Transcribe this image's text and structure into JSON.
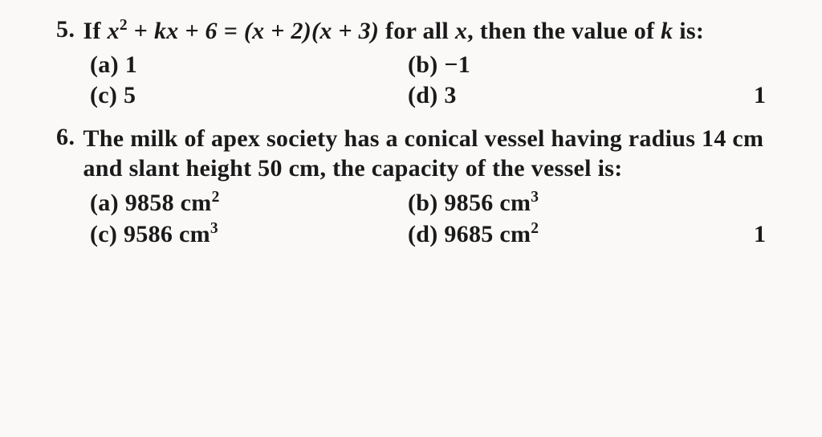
{
  "q5": {
    "number": "5.",
    "text_pre": "If ",
    "eq_lhs_a": "x",
    "eq_lhs_a_sup": "2",
    "eq_lhs_b": " + ",
    "eq_lhs_k": "k",
    "eq_lhs_c": "x + 6 = (x + 2)(x + 3)",
    "text_mid": " for all ",
    "text_x": "x",
    "text_post": ", then the value of ",
    "text_k": "k",
    "text_end": " is:",
    "a_label": "(a) ",
    "a_val": "1",
    "b_label": "(b) ",
    "b_val": "−1",
    "c_label": "(c) ",
    "c_val": "5",
    "d_label": "(d) ",
    "d_val": "3",
    "marks": "1"
  },
  "q6": {
    "number": "6.",
    "text": "The milk of apex society has a conical vessel having radius 14 cm and slant height 50 cm, the capacity of the vessel is:",
    "a_label": "(a) ",
    "a_val": "9858 cm",
    "a_sup": "2",
    "b_label": "(b) ",
    "b_val": "9856 cm",
    "b_sup": "3",
    "c_label": "(c) ",
    "c_val": "9586 cm",
    "c_sup": "3",
    "d_label": "(d) ",
    "d_val": "9685 cm",
    "d_sup": "2",
    "marks": "1"
  }
}
